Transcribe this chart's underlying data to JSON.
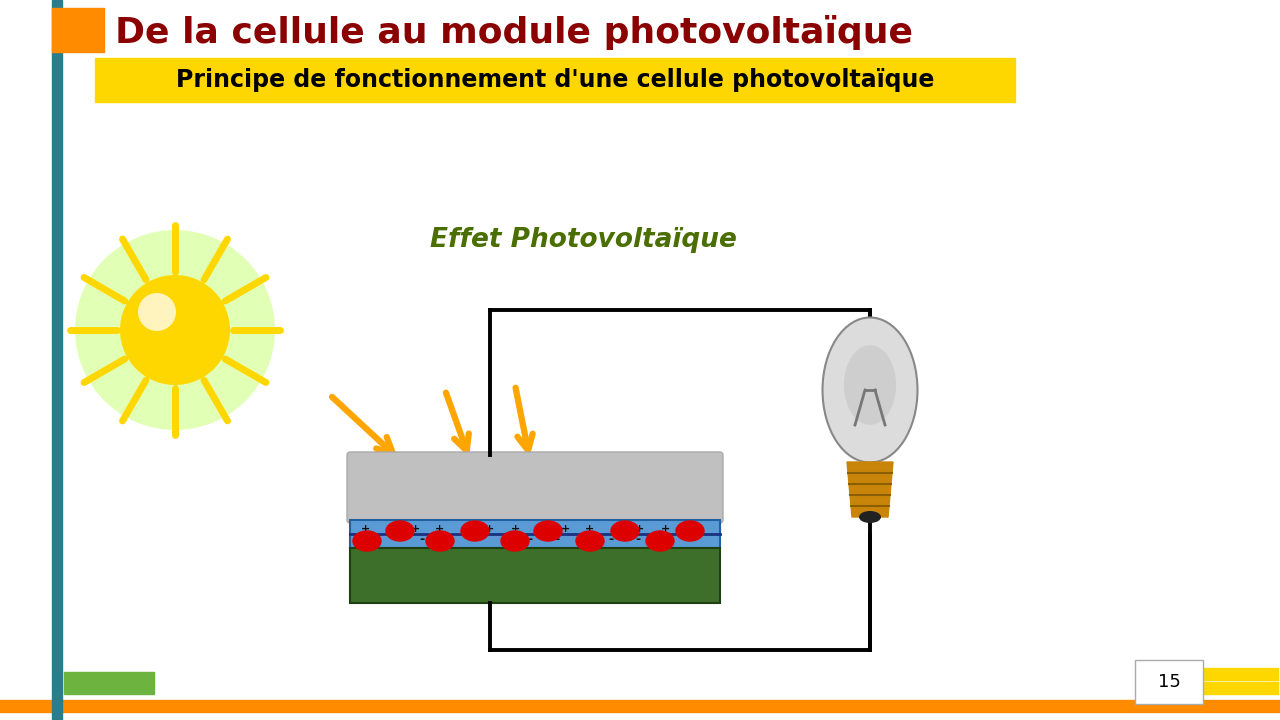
{
  "title": "De la cellule au module photovoltaïque",
  "subtitle": "Principe de fonctionnement d'une cellule photovoltaïque",
  "effect_text": "Effet Photovoltaïque",
  "bg_color": "#ffffff",
  "title_color": "#8B0000",
  "subtitle_bg": "#FFD700",
  "subtitle_color": "#000000",
  "effect_color": "#4B6E00",
  "left_bar_color": "#2A7D8C",
  "left_square_color": "#6DB33F",
  "orange_square_color": "#FF8C00",
  "bottom_line_color": "#FF8C00",
  "arrow_color": "#FFA500",
  "circuit_color": "#000000",
  "page_num": "15",
  "gray_layer_color": "#C0C0C0",
  "blue_layer_color": "#5B9BD5",
  "junction_color": "#1a3080",
  "green_layer_color": "#3D6E2A",
  "red_dot_color": "#DD0000",
  "bulb_glass_color": "#DCDCDC",
  "bulb_base_color": "#C8850A",
  "sun_ray_color": "#FFD700",
  "sun_body_color": "#FFD700",
  "sun_glow_color": "#ADFF2F"
}
